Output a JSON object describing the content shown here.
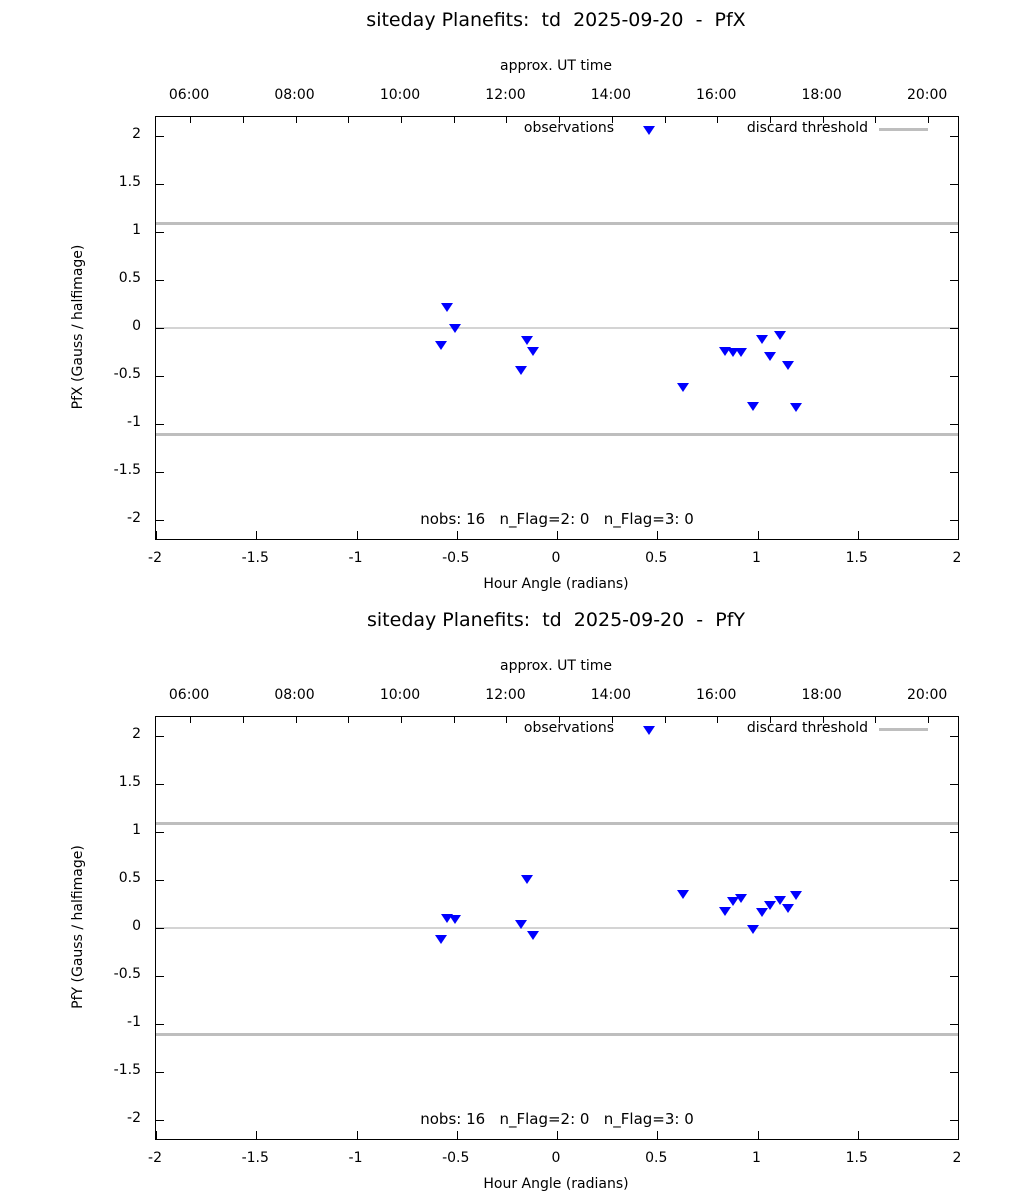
{
  "colors": {
    "marker_blue": "#0000ff",
    "threshold_gray": "#bebebe",
    "zero_line_gray": "#d4d4d4",
    "axis_black": "#000000"
  },
  "chart_data": [
    {
      "type": "scatter",
      "title": "siteday Planefits:  td  2025-09-20  -  PfX",
      "x2label": "approx. UT time",
      "xlabel": "Hour Angle (radians)",
      "ylabel": "PfX (Gauss / halfimage)",
      "xlim": [
        -2,
        2
      ],
      "ylim": [
        -2.2,
        2.2
      ],
      "grid": false,
      "legend_position": "top-inside",
      "legend": [
        {
          "label": "observations",
          "type": "point"
        },
        {
          "label": "discard threshold",
          "type": "line"
        }
      ],
      "annotation": "nobs: 16   n_Flag=2: 0   n_Flag=3: 0",
      "thresholds": [
        1.1,
        -1.1
      ],
      "zero_line": 0,
      "x_ticks": [
        {
          "label": "-2",
          "v": -2
        },
        {
          "label": "-1.5",
          "v": -1.5
        },
        {
          "label": "-1",
          "v": -1
        },
        {
          "label": "-0.5",
          "v": -0.5
        },
        {
          "label": "0",
          "v": 0
        },
        {
          "label": "0.5",
          "v": 0.5
        },
        {
          "label": "1",
          "v": 1
        },
        {
          "label": "1.5",
          "v": 1.5
        },
        {
          "label": "2",
          "v": 2
        }
      ],
      "y_ticks": [
        {
          "label": "2",
          "v": 2
        },
        {
          "label": "1.5",
          "v": 1.5
        },
        {
          "label": "1",
          "v": 1
        },
        {
          "label": "0.5",
          "v": 0.5
        },
        {
          "label": "0",
          "v": 0
        },
        {
          "label": "-0.5",
          "v": -0.5
        },
        {
          "label": "-1",
          "v": -1
        },
        {
          "label": "-1.5",
          "v": -1.5
        },
        {
          "label": "-2",
          "v": -2
        }
      ],
      "ut_ticks": [
        {
          "label": "06:00",
          "x": -1.83
        },
        {
          "label": "08:00",
          "x": -1.304
        },
        {
          "label": "10:00",
          "x": -0.778
        },
        {
          "label": "12:00",
          "x": -0.252
        },
        {
          "label": "14:00",
          "x": 0.274
        },
        {
          "label": "16:00",
          "x": 0.799
        },
        {
          "label": "18:00",
          "x": 1.325
        },
        {
          "label": "20:00",
          "x": 1.851
        }
      ],
      "series": [
        {
          "name": "observations",
          "marker": "triangle-down",
          "color": "#0000ff",
          "points": [
            [
              -0.58,
              -0.19
            ],
            [
              -0.55,
              0.21
            ],
            [
              -0.51,
              -0.01
            ],
            [
              -0.18,
              -0.45
            ],
            [
              -0.15,
              -0.14
            ],
            [
              -0.12,
              -0.25
            ],
            [
              0.63,
              -0.63
            ],
            [
              0.84,
              -0.25
            ],
            [
              0.88,
              -0.26
            ],
            [
              0.92,
              -0.26
            ],
            [
              0.98,
              -0.82
            ],
            [
              1.02,
              -0.13
            ],
            [
              1.06,
              -0.3
            ],
            [
              1.11,
              -0.08
            ],
            [
              1.15,
              -0.4
            ],
            [
              1.19,
              -0.83
            ]
          ]
        }
      ]
    },
    {
      "type": "scatter",
      "title": "siteday Planefits:  td  2025-09-20  -  PfY",
      "x2label": "approx. UT time",
      "xlabel": "Hour Angle (radians)",
      "ylabel": "PfY (Gauss / halfimage)",
      "xlim": [
        -2,
        2
      ],
      "ylim": [
        -2.2,
        2.2
      ],
      "grid": false,
      "legend_position": "top-inside",
      "legend": [
        {
          "label": "observations",
          "type": "point"
        },
        {
          "label": "discard threshold",
          "type": "line"
        }
      ],
      "annotation": "nobs: 16   n_Flag=2: 0   n_Flag=3: 0",
      "thresholds": [
        1.1,
        -1.1
      ],
      "zero_line": 0,
      "x_ticks": [
        {
          "label": "-2",
          "v": -2
        },
        {
          "label": "-1.5",
          "v": -1.5
        },
        {
          "label": "-1",
          "v": -1
        },
        {
          "label": "-0.5",
          "v": -0.5
        },
        {
          "label": "0",
          "v": 0
        },
        {
          "label": "0.5",
          "v": 0.5
        },
        {
          "label": "1",
          "v": 1
        },
        {
          "label": "1.5",
          "v": 1.5
        },
        {
          "label": "2",
          "v": 2
        }
      ],
      "y_ticks": [
        {
          "label": "2",
          "v": 2
        },
        {
          "label": "1.5",
          "v": 1.5
        },
        {
          "label": "1",
          "v": 1
        },
        {
          "label": "0.5",
          "v": 0.5
        },
        {
          "label": "0",
          "v": 0
        },
        {
          "label": "-0.5",
          "v": -0.5
        },
        {
          "label": "-1",
          "v": -1
        },
        {
          "label": "-1.5",
          "v": -1.5
        },
        {
          "label": "-2",
          "v": -2
        }
      ],
      "ut_ticks": [
        {
          "label": "06:00",
          "x": -1.83
        },
        {
          "label": "08:00",
          "x": -1.304
        },
        {
          "label": "10:00",
          "x": -0.778
        },
        {
          "label": "12:00",
          "x": -0.252
        },
        {
          "label": "14:00",
          "x": 0.274
        },
        {
          "label": "16:00",
          "x": 0.799
        },
        {
          "label": "18:00",
          "x": 1.325
        },
        {
          "label": "20:00",
          "x": 1.851
        }
      ],
      "series": [
        {
          "name": "observations",
          "marker": "triangle-down",
          "color": "#0000ff",
          "points": [
            [
              -0.58,
              -0.13
            ],
            [
              -0.55,
              0.09
            ],
            [
              -0.51,
              0.08
            ],
            [
              -0.18,
              0.03
            ],
            [
              -0.15,
              0.5
            ],
            [
              -0.12,
              -0.08
            ],
            [
              0.63,
              0.34
            ],
            [
              0.84,
              0.17
            ],
            [
              0.88,
              0.27
            ],
            [
              0.92,
              0.3
            ],
            [
              0.98,
              -0.02
            ],
            [
              1.02,
              0.16
            ],
            [
              1.06,
              0.23
            ],
            [
              1.11,
              0.28
            ],
            [
              1.15,
              0.2
            ],
            [
              1.19,
              0.33
            ]
          ]
        }
      ]
    }
  ]
}
